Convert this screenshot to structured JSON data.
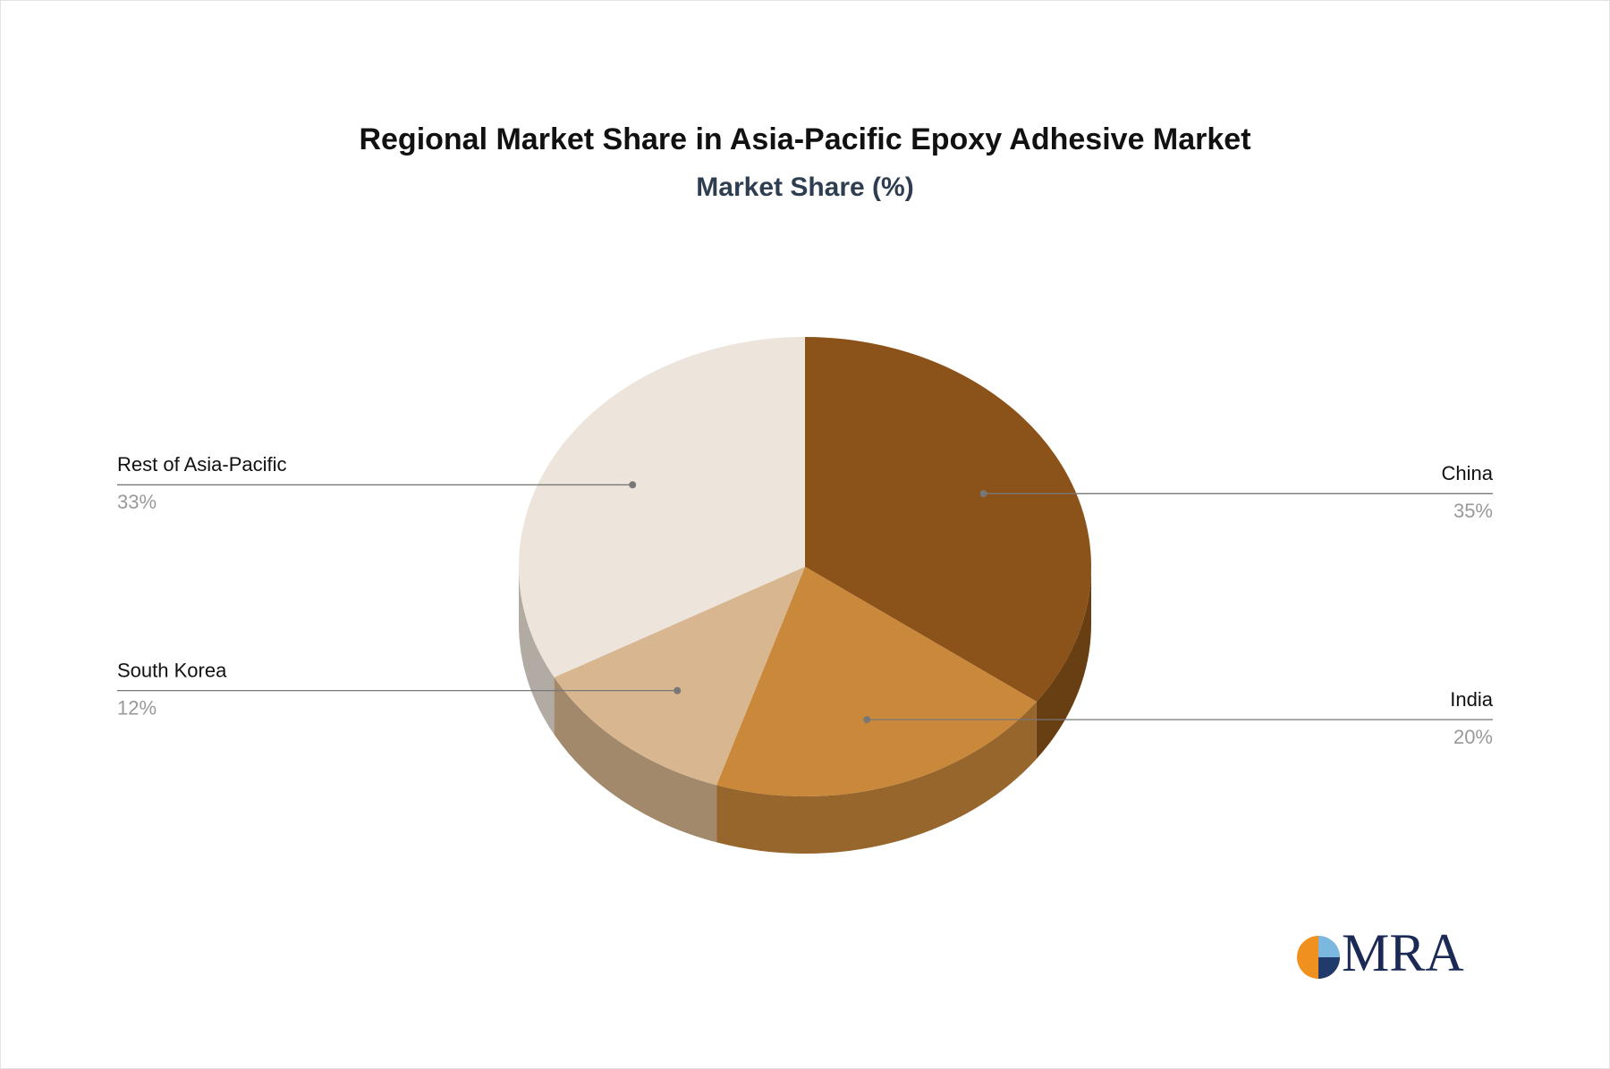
{
  "chart_data": {
    "type": "pie3d",
    "title": "Regional Market Share in Asia-Pacific Epoxy Adhesive Market",
    "subtitle": "Market Share (%)",
    "categories": [
      "China",
      "India",
      "South Korea",
      "Rest of Asia-Pacific"
    ],
    "values": [
      35,
      20,
      12,
      33
    ],
    "value_labels": [
      "35%",
      "20%",
      "12%",
      "33%"
    ],
    "colors": [
      "#8b5319",
      "#c9883a",
      "#d8b690",
      "#ede4db"
    ]
  },
  "logo": "MRA"
}
